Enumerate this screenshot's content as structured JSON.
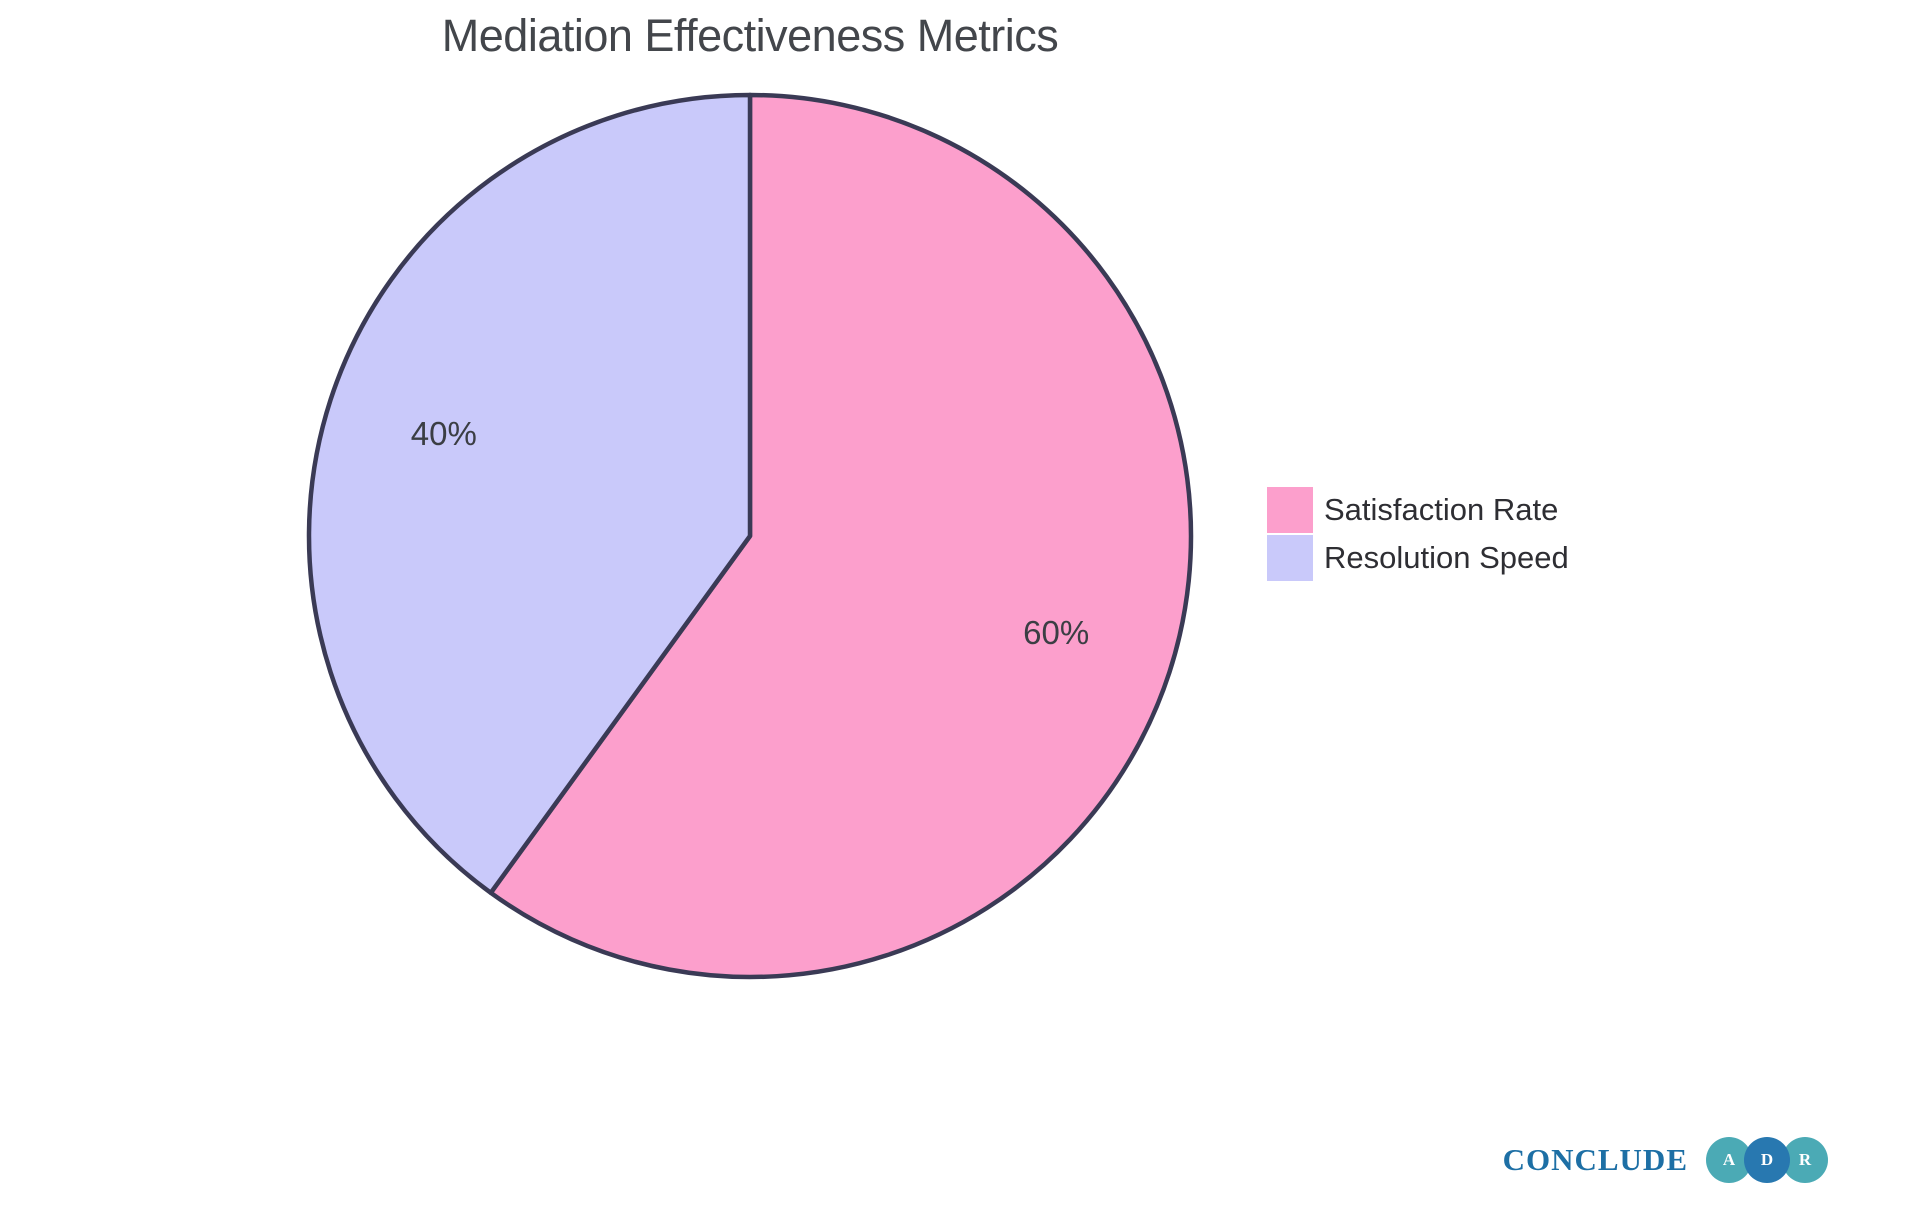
{
  "title": "Mediation Effectiveness Metrics",
  "chart_data": {
    "type": "pie",
    "title": "Mediation Effectiveness Metrics",
    "labels": [
      "Satisfaction Rate",
      "Resolution Speed"
    ],
    "values": [
      60,
      40
    ],
    "slice_labels": [
      "60%",
      "40%"
    ],
    "colors": [
      "#FC9FCC",
      "#C9C9FA"
    ],
    "outline_color": "#3A3A55",
    "outline_width": 4.5,
    "start_angle_deg": 0,
    "direction": "clockwise",
    "legend_position": "right",
    "legend": true
  },
  "legend": {
    "items": [
      {
        "label": "Satisfaction Rate",
        "color": "#FC9FCC"
      },
      {
        "label": "Resolution Speed",
        "color": "#C9C9FA"
      }
    ]
  },
  "watermark": {
    "brand": "CONCLUDE",
    "brand_color": "#1D6FA5",
    "badges": [
      {
        "letter": "A",
        "color": "#4BAAB5"
      },
      {
        "letter": "D",
        "color": "#2878B0"
      },
      {
        "letter": "R",
        "color": "#4BAAB5"
      }
    ]
  },
  "colors": {
    "title_text": "#43464B",
    "slice_label_text": "#3B3E44",
    "legend_text": "#2E2E33"
  }
}
